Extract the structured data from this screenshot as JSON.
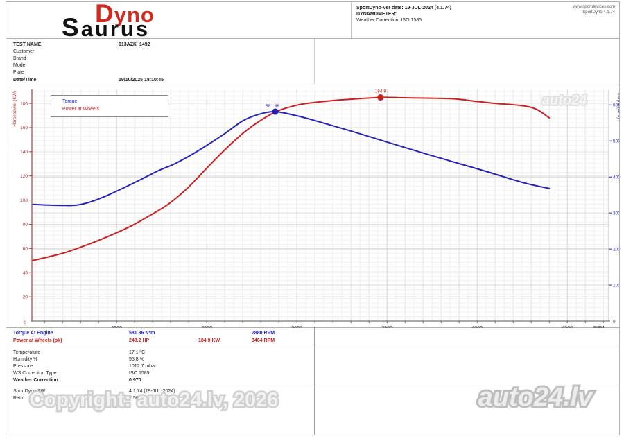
{
  "header": {
    "logo_line1": "Dyno",
    "logo_line2": "Saurus",
    "version_line": "SportDyno-Ver date: 19-JUL-2024 (4.1.74)",
    "dynamometer_line": "DYNAMOMETER:",
    "weather_line": "Weather Correction: ISO 1585",
    "site_line1": "www.sportdevices.com",
    "site_line2": "SportDyno 4.1.74"
  },
  "test_info": {
    "rows": [
      {
        "label": "TEST NAME",
        "value": "013AZK_1492"
      },
      {
        "label": "Customer",
        "value": ""
      },
      {
        "label": "Brand",
        "value": ""
      },
      {
        "label": "Model",
        "value": ""
      },
      {
        "label": "Plate",
        "value": ""
      },
      {
        "label": "Date/Time",
        "value": "19/10/2025 18:10:45"
      }
    ]
  },
  "chart_data": {
    "type": "line",
    "x_label": "RPM",
    "x_range": [
      1530,
      4730
    ],
    "x_ticks": [
      2000,
      2500,
      3000,
      3500,
      4000,
      4500
    ],
    "left_axis": {
      "label": "Horsepower (KW)",
      "color": "#b03030",
      "range": [
        0,
        191.5
      ],
      "ticks": [
        0,
        20,
        40,
        60,
        80,
        100,
        120,
        140,
        160,
        180
      ]
    },
    "right_axis": {
      "label": "Torque (N·m)",
      "color": "#2424c0",
      "range": [
        0,
        643
      ],
      "ticks": [
        0,
        100,
        200,
        300,
        400,
        500,
        600
      ]
    },
    "grid": true,
    "legend_position": "top-left",
    "series": [
      {
        "name": "Torque",
        "axis": "right",
        "color": "#2222bb",
        "peak": {
          "rpm": 2880,
          "value": 581.36,
          "label": "581.36"
        },
        "points": [
          [
            1536,
            324
          ],
          [
            1620,
            322
          ],
          [
            1700,
            321
          ],
          [
            1780,
            322
          ],
          [
            1850,
            330
          ],
          [
            1940,
            347
          ],
          [
            2040,
            370
          ],
          [
            2130,
            392
          ],
          [
            2230,
            417
          ],
          [
            2320,
            436
          ],
          [
            2420,
            463
          ],
          [
            2520,
            494
          ],
          [
            2610,
            524
          ],
          [
            2700,
            556
          ],
          [
            2790,
            574
          ],
          [
            2880,
            581.36
          ],
          [
            2990,
            571
          ],
          [
            3090,
            558
          ],
          [
            3290,
            529
          ],
          [
            3480,
            500
          ],
          [
            3670,
            471
          ],
          [
            3860,
            443
          ],
          [
            4060,
            414
          ],
          [
            4250,
            385
          ],
          [
            4400,
            368
          ]
        ]
      },
      {
        "name": "Power at Wheels",
        "axis": "left",
        "color": "#cc1f1f",
        "peak": {
          "rpm": 3464,
          "value": 184.9,
          "label": "184.9"
        },
        "points": [
          [
            1536,
            50.1
          ],
          [
            1620,
            53
          ],
          [
            1710,
            56.4
          ],
          [
            1800,
            61
          ],
          [
            1900,
            66.7
          ],
          [
            2000,
            73
          ],
          [
            2090,
            79.3
          ],
          [
            2200,
            88.6
          ],
          [
            2290,
            97
          ],
          [
            2390,
            109.5
          ],
          [
            2520,
            129.5
          ],
          [
            2610,
            143
          ],
          [
            2710,
            156.4
          ],
          [
            2800,
            166
          ],
          [
            2890,
            173.5
          ],
          [
            3000,
            178.5
          ],
          [
            3090,
            180.6
          ],
          [
            3200,
            182.3
          ],
          [
            3300,
            183.4
          ],
          [
            3464,
            184.9
          ],
          [
            3600,
            184.6
          ],
          [
            3860,
            183.8
          ],
          [
            4000,
            181.5
          ],
          [
            4100,
            180
          ],
          [
            4250,
            178.1
          ],
          [
            4330,
            175
          ],
          [
            4400,
            168
          ]
        ]
      }
    ]
  },
  "results": {
    "rows": [
      {
        "label": "Torque At Engine",
        "v1": "581.36 N*m",
        "v2": "",
        "v3": "2880 RPM"
      },
      {
        "label": "Power at Wheels (pk)",
        "v1": "248.2 HP",
        "v2": "184.9 KW",
        "v3": "3464 RPM"
      }
    ]
  },
  "environment": {
    "rows": [
      {
        "label": "Temperature",
        "value": "17.1 ºC"
      },
      {
        "label": "Humidity %",
        "value": "55.8 %"
      },
      {
        "label": "Pressure",
        "value": "1012.7 mbar"
      },
      {
        "label": "WS Correction Type",
        "value": "ISO 1585"
      },
      {
        "label": "Weather Correction",
        "value": "0.970"
      }
    ]
  },
  "software": {
    "rows": [
      {
        "label": "SportDyno SW",
        "value": "4.1.74 (19-JUL-2024)"
      },
      {
        "label": "Ratio",
        "value": "2.56"
      }
    ]
  },
  "watermarks": {
    "copyright": "Copyright: auto24.lv, 2026",
    "brand": "auto24.lv",
    "chart": "auto24"
  },
  "colors": {
    "accent_red": "#cc2020",
    "accent_blue": "#2424c0",
    "logo_red": "#d4281e"
  }
}
